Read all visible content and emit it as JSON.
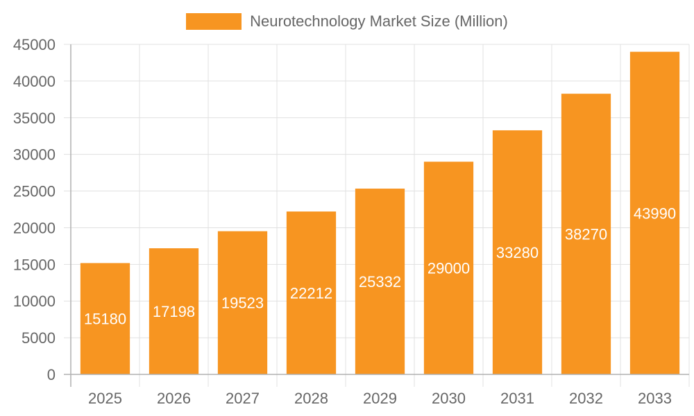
{
  "legend": {
    "label": "Neurotechnology Market Size (Million)",
    "color": "#f79521"
  },
  "colors": {
    "bar": "#f79521",
    "grid": "#e0e0e0",
    "axis": "#b0b0b0",
    "text": "#666666",
    "value_label": "#ffffff"
  },
  "chart_data": {
    "type": "bar",
    "title": "",
    "xlabel": "",
    "ylabel": "",
    "categories": [
      "2025",
      "2026",
      "2027",
      "2028",
      "2029",
      "2030",
      "2031",
      "2032",
      "2033"
    ],
    "series": [
      {
        "name": "Neurotechnology Market Size (Million)",
        "values": [
          15180,
          17198,
          19523,
          22212,
          25332,
          29000,
          33280,
          38270,
          43990
        ]
      }
    ],
    "ylim": [
      0,
      45000
    ],
    "yticks": [
      0,
      5000,
      10000,
      15000,
      20000,
      25000,
      30000,
      35000,
      40000,
      45000
    ],
    "grid": true,
    "legend_position": "top",
    "data_labels": "inside-bar-middle"
  }
}
